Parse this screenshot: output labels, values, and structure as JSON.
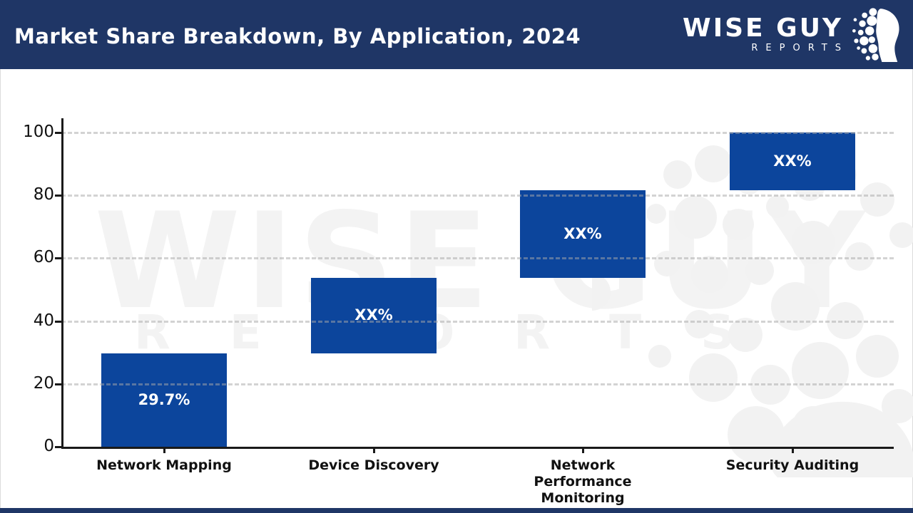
{
  "header": {
    "title": "Market Share Breakdown, By Application, 2024",
    "logo": {
      "line1": "WISE GUY",
      "line2": "REPORTS"
    }
  },
  "watermark": {
    "line1": "WISE GUY",
    "line2": "R E P O R T S"
  },
  "colors": {
    "header_bg": "#1f3666",
    "footer_bg": "#1f3666",
    "bar": "#0c459c",
    "bar_label": "#ffffff",
    "axis": "#1a1a1a",
    "gridline": "#d8d8d8",
    "watermark": "#f3f3f3",
    "title_text": "#ffffff"
  },
  "chart_data": {
    "type": "waterfall",
    "title": "Market Share Breakdown, By Application, 2024",
    "categories": [
      "Network Mapping",
      "Device Discovery",
      "Network Performance Monitoring",
      "Security Auditing"
    ],
    "segments": [
      {
        "category": "Network Mapping",
        "start": 0,
        "end": 29.7,
        "label": "29.7%"
      },
      {
        "category": "Device Discovery",
        "start": 29.7,
        "end": 53.7,
        "label": "XX%"
      },
      {
        "category": "Network Performance Monitoring",
        "start": 53.7,
        "end": 81.6,
        "label": "XX%"
      },
      {
        "category": "Security Auditing",
        "start": 81.6,
        "end": 100,
        "label": "XX%"
      }
    ],
    "ylim": [
      0,
      100
    ],
    "yticks": [
      0,
      20,
      40,
      60,
      80,
      100
    ],
    "xlabel": "",
    "ylabel": "",
    "grid": "horizontal-dashed",
    "legend": "none"
  }
}
